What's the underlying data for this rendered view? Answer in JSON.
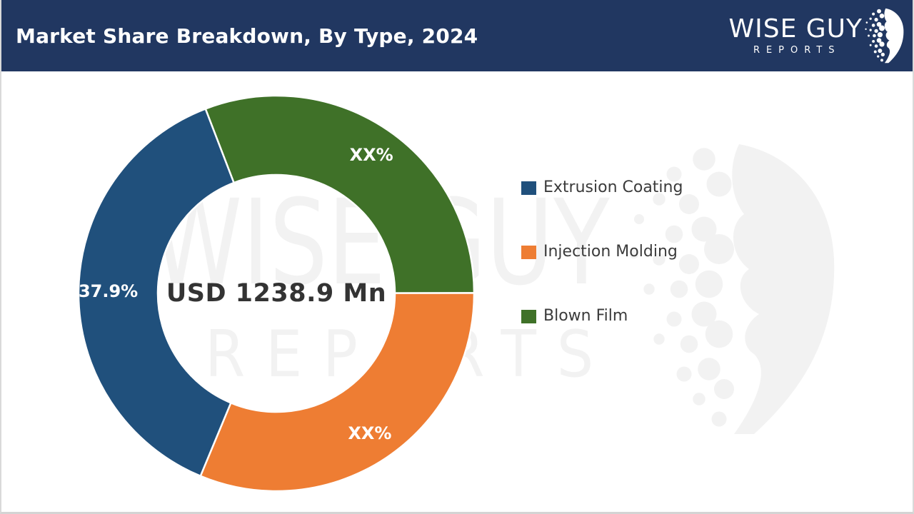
{
  "header": {
    "title": "Market Share Breakdown, By Type, 2024",
    "logo_line1": "WISE GUY",
    "logo_line2": "REPORTS"
  },
  "watermark": {
    "line1": "WISE GUY",
    "line2": "REPORTS"
  },
  "chart_data": {
    "type": "pie",
    "subtype": "donut",
    "title": "Market Share Breakdown, By Type, 2024",
    "center_label": "USD 1238.9 Mn",
    "direction": "clockwise",
    "start_angle_from_top_deg": -21,
    "inner_radius_ratio": 0.6,
    "legend_position": "right",
    "segments": [
      {
        "name": "Blown Film",
        "label": "XX%",
        "value_pct": 30.8,
        "color": "#3F7128"
      },
      {
        "name": "Injection Molding",
        "label": "XX%",
        "value_pct": 31.3,
        "color": "#EE7D33"
      },
      {
        "name": "Extrusion Coating",
        "label": "37.9%",
        "value_pct": 37.9,
        "color": "#20507C"
      }
    ],
    "legend": [
      {
        "label": "Extrusion Coating",
        "color": "#20507C"
      },
      {
        "label": "Injection Molding",
        "color": "#EE7D33"
      },
      {
        "label": "Blown Film",
        "color": "#3F7128"
      }
    ]
  },
  "colors": {
    "header_bg": "#213761",
    "center_text": "#333333",
    "legend_text": "#3b3b3b",
    "watermark": "#f2f2f2",
    "segment_gap": "#ffffff",
    "page_border": "#d9d9d9"
  }
}
